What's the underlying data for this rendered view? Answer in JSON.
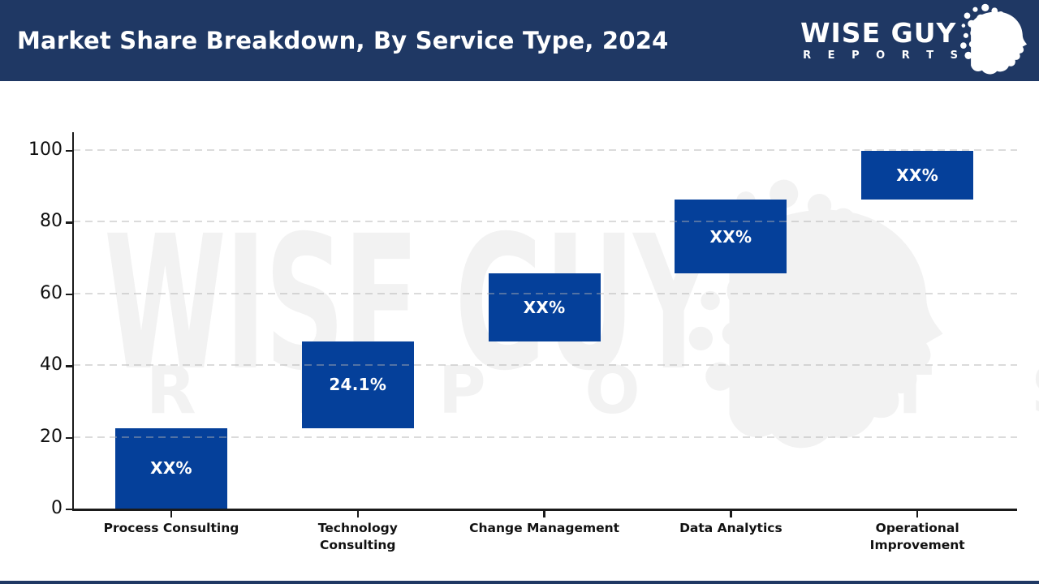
{
  "header": {
    "title": "Market Share Breakdown, By Service Type, 2024",
    "logo": {
      "line1": "WISE GUY",
      "line2": "R E P O R T S"
    }
  },
  "watermark": {
    "line1": "WISE GUY",
    "line2": "R E P O R T S"
  },
  "colors": {
    "header_bg": "#1f3864",
    "bar": "#05409a",
    "bar_label": "#ffffff",
    "axis": "#1a1a1a",
    "grid": "#dcdcdc",
    "watermark": "#f2f2f2"
  },
  "chart_data": {
    "type": "bar",
    "subtype": "floating_waterfall",
    "title": "Market Share Breakdown, By Service Type, 2024",
    "categories": [
      "Process Consulting",
      "Technology\nConsulting",
      "Change Management",
      "Data Analytics",
      "Operational\nImprovement"
    ],
    "segments": [
      {
        "category": "Process Consulting",
        "from": 0,
        "to": 22.5,
        "label": "XX%"
      },
      {
        "category": "Technology Consulting",
        "from": 22.5,
        "to": 46.6,
        "label": "24.1%",
        "increment": 24.1
      },
      {
        "category": "Change Management",
        "from": 46.6,
        "to": 65.6,
        "label": "XX%"
      },
      {
        "category": "Data Analytics",
        "from": 65.6,
        "to": 86.2,
        "label": "XX%"
      },
      {
        "category": "Operational Improvement",
        "from": 86.2,
        "to": 99.7,
        "label": "XX%"
      }
    ],
    "xlabel": "",
    "ylabel": "",
    "ylim": [
      0,
      100
    ],
    "yticks": [
      0,
      20,
      40,
      60,
      80,
      100
    ],
    "grid": "horizontal-dashed",
    "legend": "none",
    "bar_color": "#05409a",
    "label_color": "#ffffff"
  }
}
